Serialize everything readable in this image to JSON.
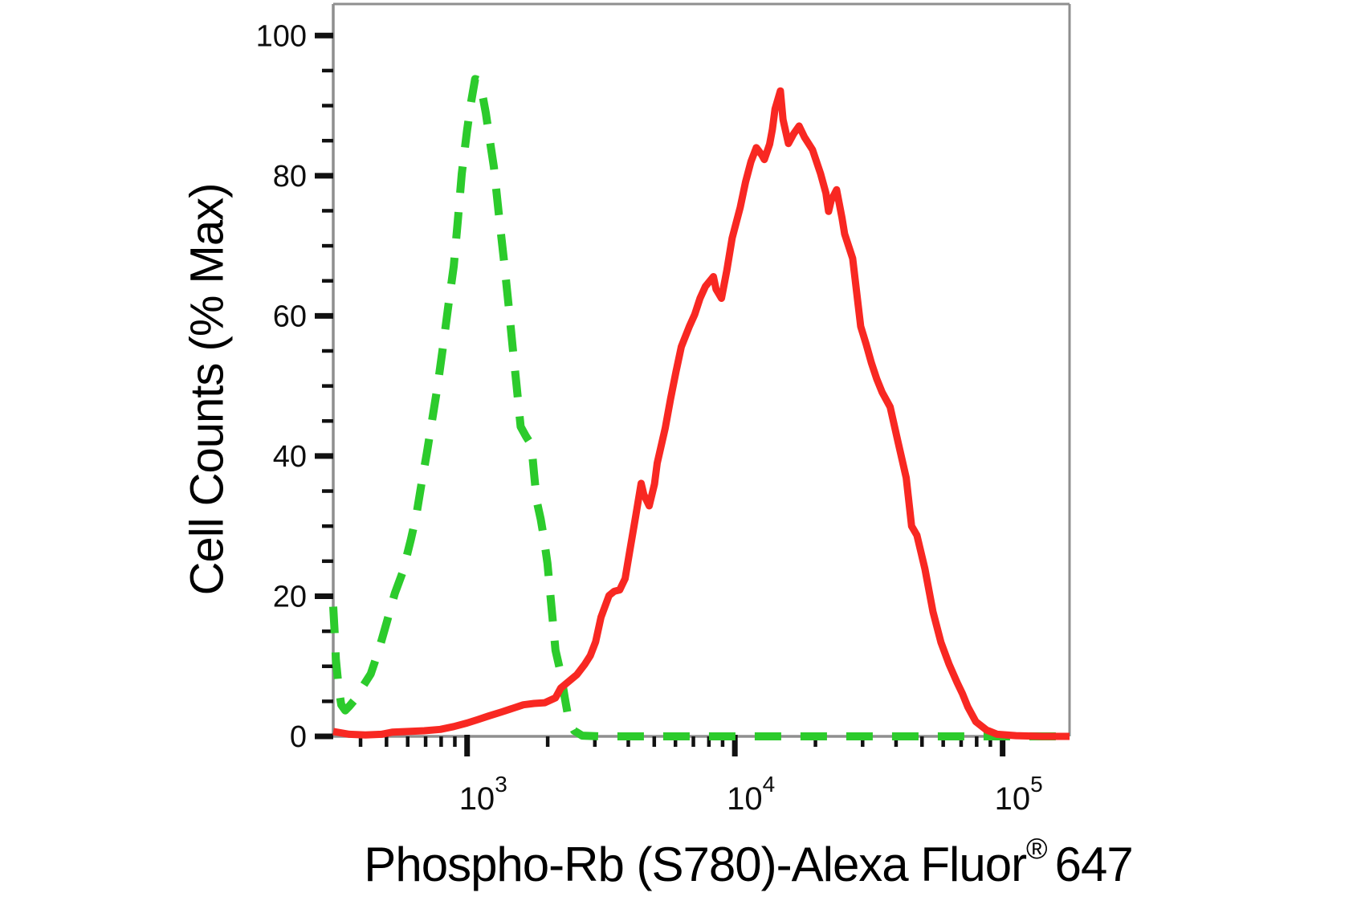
{
  "chart_data": {
    "type": "line",
    "subtype": "flow-cytometry-overlay-histogram",
    "title": "",
    "xlabel_parts": {
      "main": "Phospho-Rb (S780)-Alexa Fluor",
      "registered_mark": "®",
      "tail": "647"
    },
    "ylabel": "Cell Counts (% Max)",
    "x_axis": {
      "scale": "log10",
      "range_log10": [
        2.5,
        5.25
      ],
      "major_ticks": [
        {
          "value": 1000,
          "label_base": "10",
          "label_exponent": "3"
        },
        {
          "value": 10000,
          "label_base": "10",
          "label_exponent": "4"
        },
        {
          "value": 100000,
          "label_base": "10",
          "label_exponent": "5"
        }
      ],
      "minor_ticks": [
        400,
        500,
        600,
        700,
        800,
        900,
        2000,
        3000,
        4000,
        5000,
        6000,
        7000,
        8000,
        9000,
        20000,
        30000,
        40000,
        50000,
        60000,
        70000,
        80000,
        90000
      ]
    },
    "y_axis": {
      "scale": "linear",
      "range": [
        0,
        104.5
      ],
      "major_ticks": [
        0,
        20,
        40,
        60,
        80,
        100
      ],
      "minor_ticks": [
        5,
        10,
        15,
        25,
        30,
        35,
        45,
        50,
        55,
        65,
        70,
        75,
        85,
        90,
        95
      ]
    },
    "grid": false,
    "legend": false,
    "colors": {
      "axis_frame": "#8f8f8f",
      "tick": "#111111",
      "green_series": "#2ccb2c",
      "red_series": "#f82822",
      "background": "#ffffff"
    },
    "series": [
      {
        "name": "green-dashed",
        "description": "dashed green histogram, peak ~94% at ~1.1e3",
        "color": "#2ccb2c",
        "style": "dashed",
        "line_width": 10,
        "points_log10_pct": [
          [
            2.5,
            18.5
          ],
          [
            2.505,
            15.0
          ],
          [
            2.51,
            11.0
          ],
          [
            2.52,
            7.0
          ],
          [
            2.53,
            4.5
          ],
          [
            2.545,
            3.7
          ],
          [
            2.56,
            4.3
          ],
          [
            2.58,
            5.2
          ],
          [
            2.6,
            6.5
          ],
          [
            2.62,
            7.7
          ],
          [
            2.64,
            8.9
          ],
          [
            2.67,
            12.3
          ],
          [
            2.7,
            16.3
          ],
          [
            2.73,
            20.4
          ],
          [
            2.76,
            23.5
          ],
          [
            2.79,
            28.1
          ],
          [
            2.81,
            31.5
          ],
          [
            2.83,
            36.1
          ],
          [
            2.85,
            40.5
          ],
          [
            2.87,
            45.3
          ],
          [
            2.89,
            50.0
          ],
          [
            2.91,
            55.6
          ],
          [
            2.93,
            61.5
          ],
          [
            2.95,
            67.1
          ],
          [
            2.965,
            73.5
          ],
          [
            2.98,
            80.3
          ],
          [
            3.0,
            86.5
          ],
          [
            3.015,
            90.5
          ],
          [
            3.03,
            93.8
          ],
          [
            3.045,
            93.6
          ],
          [
            3.06,
            91.0
          ],
          [
            3.07,
            88.9
          ],
          [
            3.085,
            85.0
          ],
          [
            3.1,
            81.2
          ],
          [
            3.12,
            74.0
          ],
          [
            3.14,
            67.1
          ],
          [
            3.155,
            61.5
          ],
          [
            3.17,
            55.6
          ],
          [
            3.185,
            50.0
          ],
          [
            3.2,
            44.2
          ],
          [
            3.22,
            42.8
          ],
          [
            3.24,
            41.6
          ],
          [
            3.25,
            37.5
          ],
          [
            3.26,
            33.6
          ],
          [
            3.275,
            31.0
          ],
          [
            3.285,
            28.7
          ],
          [
            3.3,
            24.7
          ],
          [
            3.315,
            18.5
          ],
          [
            3.33,
            12.3
          ],
          [
            3.35,
            9.0
          ],
          [
            3.365,
            5.5
          ],
          [
            3.38,
            2.3
          ],
          [
            3.4,
            0.8
          ],
          [
            3.43,
            0.1
          ],
          [
            3.5,
            0.0
          ],
          [
            4.0,
            0.0
          ],
          [
            4.5,
            0.0
          ],
          [
            5.0,
            0.0
          ],
          [
            5.25,
            0.0
          ]
        ]
      },
      {
        "name": "red-solid",
        "description": "solid red histogram, main peak ~92% at ~1.5e4",
        "color": "#f82822",
        "style": "solid",
        "line_width": 9,
        "points_log10_pct": [
          [
            2.5,
            0.7
          ],
          [
            2.56,
            0.3
          ],
          [
            2.62,
            0.2
          ],
          [
            2.68,
            0.3
          ],
          [
            2.72,
            0.6
          ],
          [
            2.78,
            0.7
          ],
          [
            2.84,
            0.8
          ],
          [
            2.9,
            1.0
          ],
          [
            2.95,
            1.4
          ],
          [
            3.0,
            1.9
          ],
          [
            3.04,
            2.4
          ],
          [
            3.08,
            2.9
          ],
          [
            3.13,
            3.5
          ],
          [
            3.17,
            4.0
          ],
          [
            3.21,
            4.5
          ],
          [
            3.25,
            4.7
          ],
          [
            3.29,
            4.8
          ],
          [
            3.33,
            5.5
          ],
          [
            3.35,
            6.9
          ],
          [
            3.41,
            8.8
          ],
          [
            3.44,
            10.3
          ],
          [
            3.46,
            11.5
          ],
          [
            3.48,
            13.5
          ],
          [
            3.5,
            17.0
          ],
          [
            3.53,
            20.1
          ],
          [
            3.55,
            20.7
          ],
          [
            3.57,
            20.9
          ],
          [
            3.59,
            22.5
          ],
          [
            3.61,
            27.0
          ],
          [
            3.63,
            31.5
          ],
          [
            3.65,
            36.1
          ],
          [
            3.66,
            34.5
          ],
          [
            3.68,
            32.9
          ],
          [
            3.7,
            36.0
          ],
          [
            3.71,
            39.0
          ],
          [
            3.74,
            44.0
          ],
          [
            3.76,
            48.2
          ],
          [
            3.78,
            52.0
          ],
          [
            3.8,
            55.6
          ],
          [
            3.83,
            58.5
          ],
          [
            3.85,
            60.2
          ],
          [
            3.87,
            62.5
          ],
          [
            3.89,
            64.2
          ],
          [
            3.92,
            65.6
          ],
          [
            3.93,
            63.8
          ],
          [
            3.95,
            62.5
          ],
          [
            3.97,
            66.5
          ],
          [
            3.99,
            71.1
          ],
          [
            4.02,
            75.5
          ],
          [
            4.04,
            79.1
          ],
          [
            4.06,
            82.0
          ],
          [
            4.08,
            84.0
          ],
          [
            4.1,
            83.0
          ],
          [
            4.11,
            82.3
          ],
          [
            4.13,
            84.5
          ],
          [
            4.14,
            86.6
          ],
          [
            4.15,
            89.5
          ],
          [
            4.17,
            92.1
          ],
          [
            4.18,
            88.0
          ],
          [
            4.2,
            84.6
          ],
          [
            4.22,
            86.0
          ],
          [
            4.24,
            87.1
          ],
          [
            4.26,
            85.5
          ],
          [
            4.29,
            83.7
          ],
          [
            4.32,
            80.3
          ],
          [
            4.34,
            77.5
          ],
          [
            4.35,
            74.9
          ],
          [
            4.36,
            76.5
          ],
          [
            4.38,
            78.0
          ],
          [
            4.4,
            74.0
          ],
          [
            4.41,
            71.7
          ],
          [
            4.44,
            68.2
          ],
          [
            4.47,
            58.5
          ],
          [
            4.49,
            56.0
          ],
          [
            4.51,
            53.3
          ],
          [
            4.53,
            51.0
          ],
          [
            4.55,
            49.1
          ],
          [
            4.58,
            47.0
          ],
          [
            4.61,
            41.9
          ],
          [
            4.64,
            36.9
          ],
          [
            4.66,
            30.0
          ],
          [
            4.68,
            28.7
          ],
          [
            4.71,
            23.9
          ],
          [
            4.74,
            17.8
          ],
          [
            4.77,
            13.4
          ],
          [
            4.8,
            10.3
          ],
          [
            4.83,
            7.7
          ],
          [
            4.85,
            6.1
          ],
          [
            4.87,
            4.2
          ],
          [
            4.9,
            2.1
          ],
          [
            4.94,
            0.9
          ],
          [
            4.98,
            0.3
          ],
          [
            5.05,
            0.1
          ],
          [
            5.15,
            0.0
          ],
          [
            5.25,
            0.0
          ]
        ]
      }
    ]
  }
}
